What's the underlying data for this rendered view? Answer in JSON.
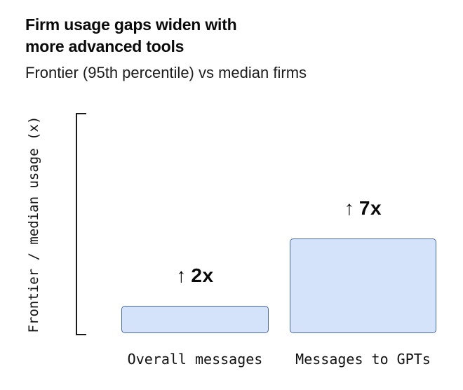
{
  "chart_data": {
    "type": "bar",
    "title": "Firm usage gaps widen with\nmore advanced tools",
    "subtitle": "Frontier (95th percentile) vs median firms",
    "ylabel": "Frontier / median usage (x)",
    "xlabel": "",
    "categories": [
      "Overall messages",
      "Messages to GPTs"
    ],
    "values": [
      2,
      7
    ],
    "ylim": [
      0,
      16
    ],
    "grid": false,
    "legend": false,
    "annotations": [
      {
        "arrow": "↑",
        "label": "2x"
      },
      {
        "arrow": "↑",
        "label": "7x"
      }
    ],
    "colors": {
      "bar_fill": "#d4e3fa",
      "bar_border": "#4a69a3",
      "axis": "#1a1a1a",
      "text": "#0d0d0d"
    }
  }
}
